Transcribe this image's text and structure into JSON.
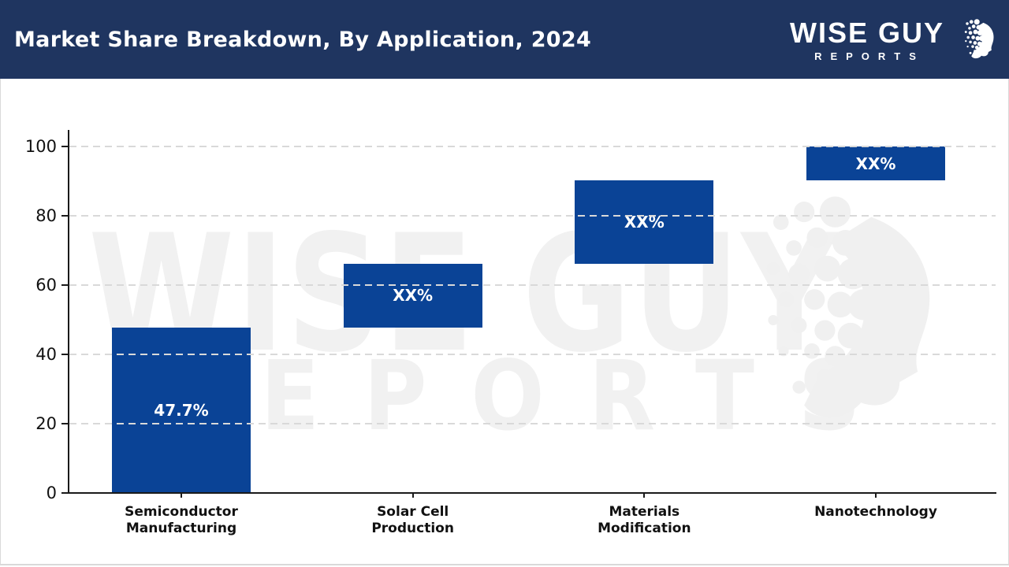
{
  "header": {
    "title": "Market Share Breakdown, By Application, 2024",
    "background_color": "#1f3560",
    "logo": {
      "line1": "WISE GUY",
      "line2": "REPORTS"
    }
  },
  "watermark": {
    "line1": "WISE GUY",
    "line2": "REPORTS"
  },
  "colors": {
    "header_bg": "#1f3560",
    "bar": "#0a4396",
    "bar_label": "#ffffff",
    "grid": "#d9d9d9",
    "axis": "#1a1a1a",
    "watermark": "#f1f1f1"
  },
  "chart_data": {
    "type": "bar",
    "subtype": "floating-segment bars (waterfall-style share breakdown)",
    "title": "Market Share Breakdown, By Application, 2024",
    "categories": [
      "Semiconductor\nManufacturing",
      "Solar Cell\nProduction",
      "Materials\nModification",
      "Nanotechnology"
    ],
    "segments": [
      {
        "category": "Semiconductor Manufacturing",
        "start": 0,
        "end": 47.7,
        "value": 47.7,
        "label": "47.7%"
      },
      {
        "category": "Solar Cell Production",
        "start": 47.7,
        "end": 66.2,
        "value": 18.5,
        "label": "XX%"
      },
      {
        "category": "Materials Modification",
        "start": 66.2,
        "end": 90.2,
        "value": 24.0,
        "label": "XX%"
      },
      {
        "category": "Nanotechnology",
        "start": 90.2,
        "end": 100,
        "value": 9.8,
        "label": "XX%"
      }
    ],
    "yticks": [
      0,
      20,
      40,
      60,
      80,
      100
    ],
    "ylim": [
      0,
      105
    ],
    "grid": "horizontal-dashed",
    "legend": "none",
    "bar_color": "#0a4396",
    "bar_label_color": "#ffffff"
  }
}
